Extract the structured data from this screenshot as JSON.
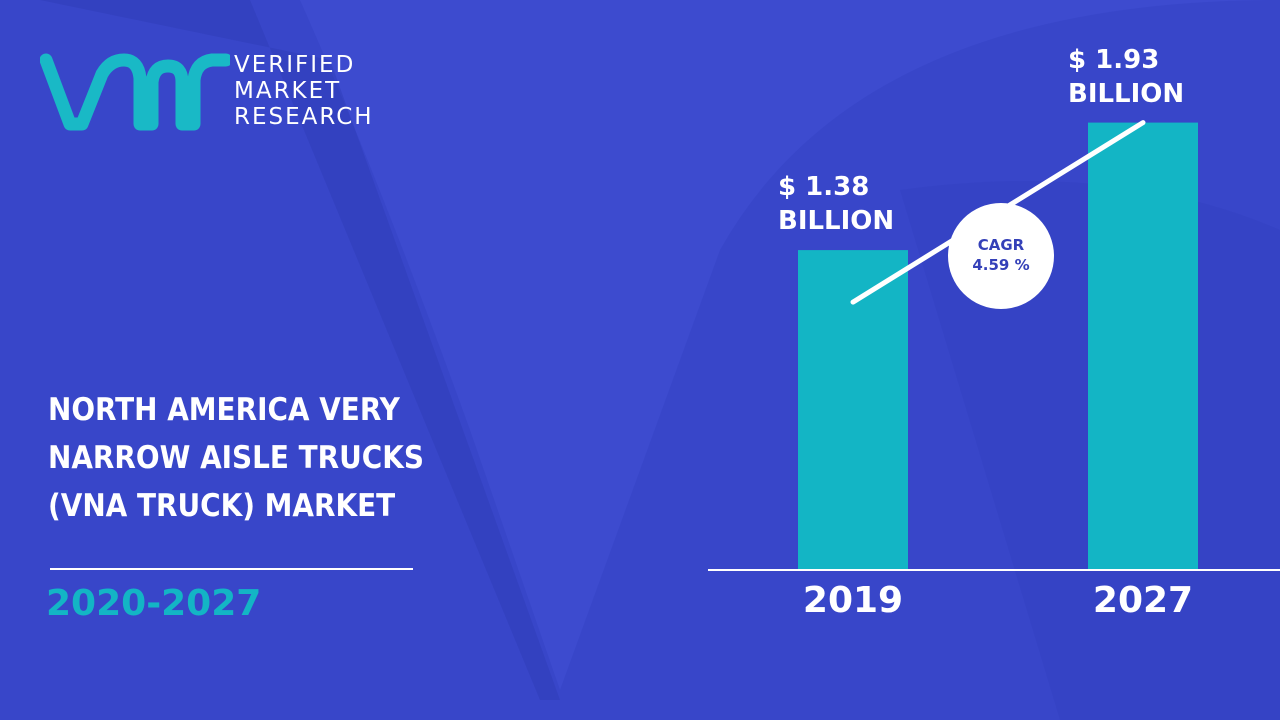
{
  "brand": {
    "logo_mark": "vmr",
    "name_line1": "VERIFIED",
    "name_line2": "MARKET",
    "name_line3": "RESEARCH",
    "colors": {
      "background": "#3d4bcf",
      "accent": "#13b5c5",
      "logo_mark": "#19b9c6"
    }
  },
  "headline": {
    "line1": "NORTH AMERICA VERY",
    "line2": "NARROW AISLE TRUCKS",
    "line3": "(VNA TRUCK) MARKET"
  },
  "period": "2020-2027",
  "cagr": {
    "label": "CAGR",
    "value": "4.59 %"
  },
  "chart_data": {
    "type": "bar",
    "categories": [
      "2019",
      "2027"
    ],
    "values": [
      1.38,
      1.93
    ],
    "value_labels": [
      {
        "line1": "$ 1.38",
        "line2": "BILLION"
      },
      {
        "line1": "$ 1.93",
        "line2": "BILLION"
      }
    ],
    "ylim": [
      0,
      2.2
    ],
    "grid": false,
    "legend": "none",
    "bar_color": "#13b5c5",
    "trend_line": true
  }
}
